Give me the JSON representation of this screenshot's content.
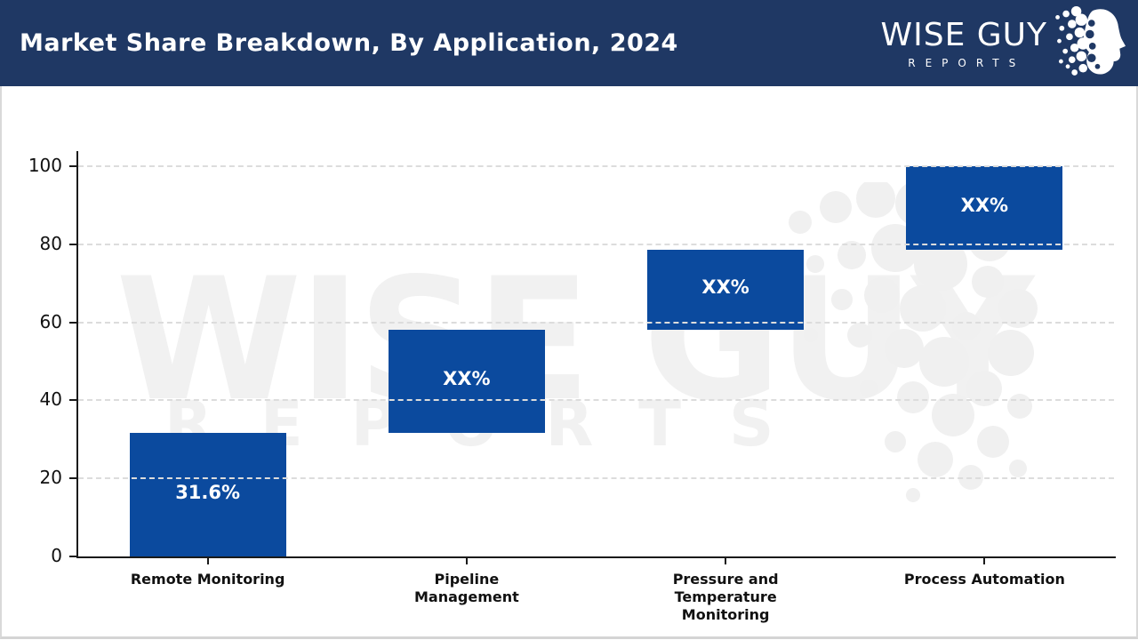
{
  "header": {
    "title": "Market Share Breakdown, By Application, 2024",
    "bg_color": "#1f3864",
    "logo": {
      "line1": "WISE GUY",
      "line2": "REPORTS"
    }
  },
  "watermark": {
    "line1": "WISE GUY",
    "line2": "REPORTS"
  },
  "chart_data": {
    "type": "bar",
    "variant": "waterfall",
    "title": "Market Share Breakdown, By Application, 2024",
    "categories": [
      "Remote Monitoring",
      "Pipeline Management",
      "Pressure and Temperature Monitoring",
      "Process Automation"
    ],
    "category_lines": [
      [
        "Remote Monitoring"
      ],
      [
        "Pipeline",
        "Management"
      ],
      [
        "Pressure and",
        "Temperature",
        "Monitoring"
      ],
      [
        "Process Automation"
      ]
    ],
    "segments": [
      {
        "category": "Remote Monitoring",
        "start": 0,
        "end": 31.6,
        "label": "31.6%"
      },
      {
        "category": "Pipeline Management",
        "start": 31.6,
        "end": 58,
        "label": "XX%"
      },
      {
        "category": "Pressure and Temperature Monitoring",
        "start": 58,
        "end": 78.5,
        "label": "XX%"
      },
      {
        "category": "Process Automation",
        "start": 78.5,
        "end": 100,
        "label": "XX%"
      }
    ],
    "yticks": [
      0,
      20,
      40,
      60,
      80,
      100
    ],
    "ylim": [
      0,
      104
    ],
    "xlabel": "",
    "ylabel": "",
    "legend": "none",
    "grid": "dashed-horizontal",
    "bar_color": "#0b4a9e",
    "bar_label_color": "#ffffff",
    "axis_color": "#1a1a1a",
    "grid_color": "#dcdcdc"
  }
}
